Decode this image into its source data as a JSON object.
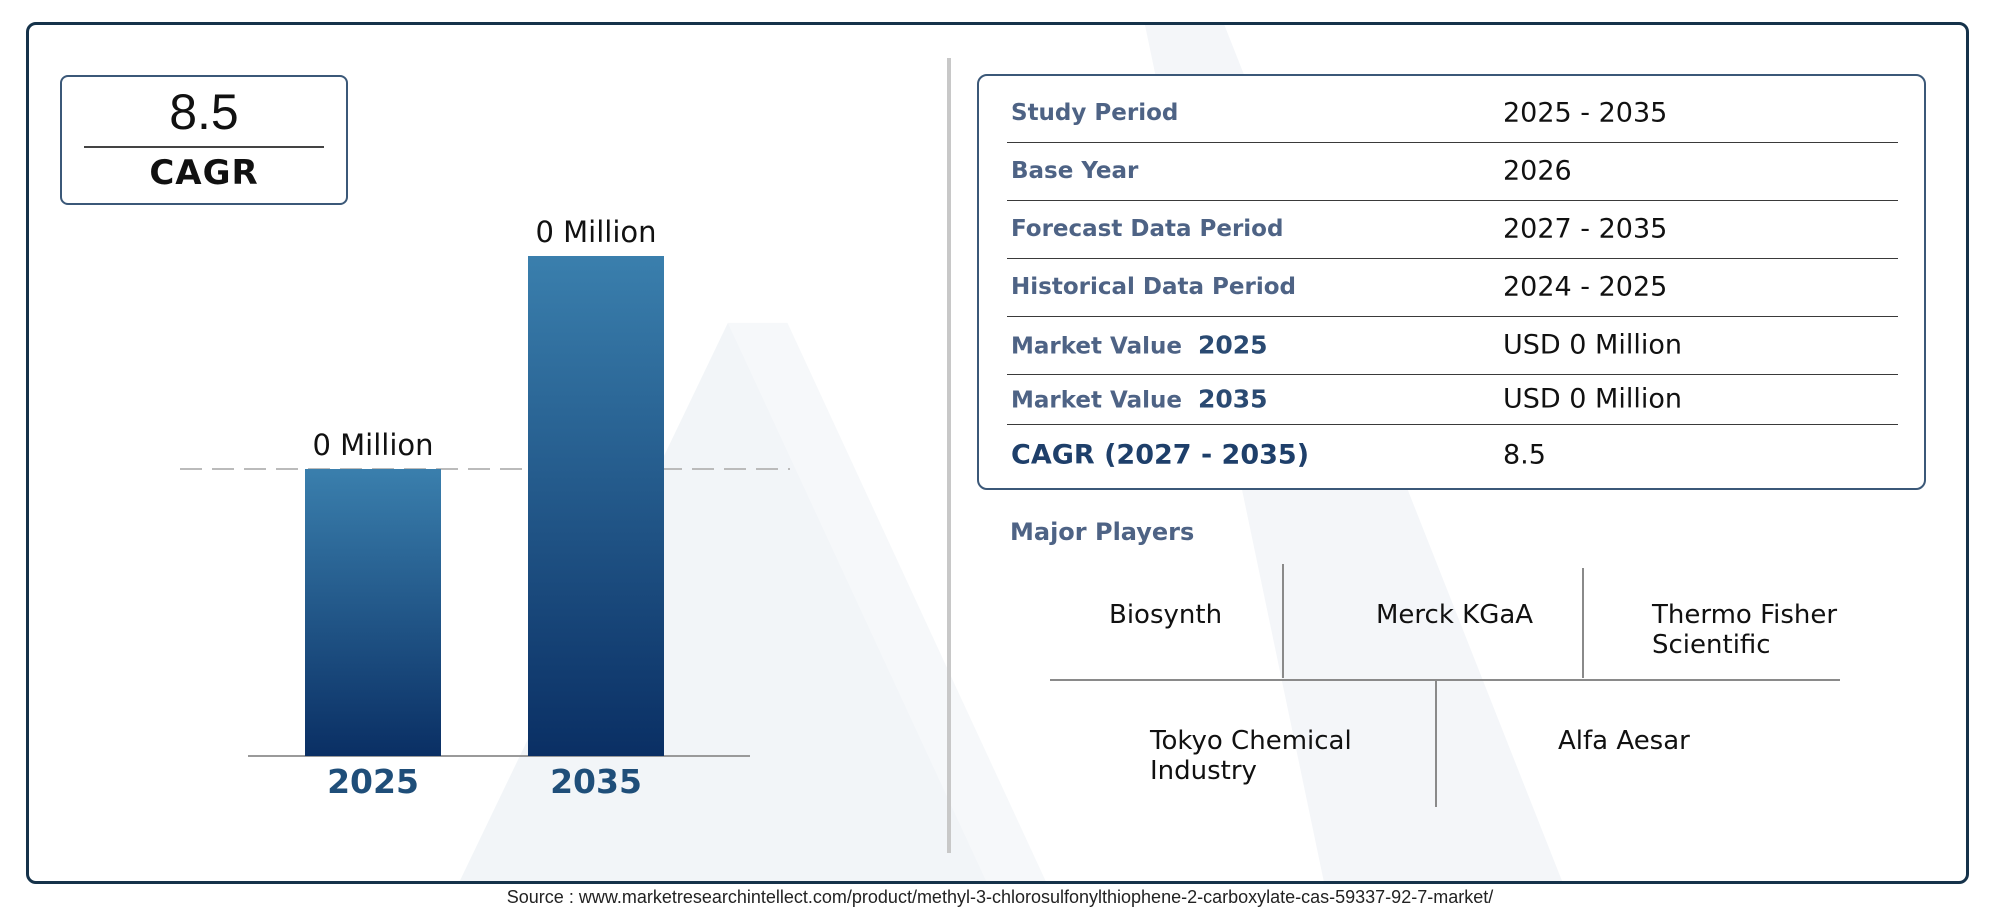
{
  "cagr_box": {
    "value": "8.5",
    "label": "CAGR"
  },
  "chart_data": {
    "type": "bar",
    "categories": [
      "2025",
      "2035"
    ],
    "values": [
      0,
      0
    ],
    "data_labels": [
      "0 Million",
      "0 Million"
    ],
    "title": "",
    "xlabel": "",
    "ylabel": "",
    "grid": false,
    "reference_line": "dashed"
  },
  "info_table": [
    {
      "key": "Study Period",
      "year": "",
      "value": "2025 - 2035"
    },
    {
      "key": "Base Year",
      "year": "",
      "value": "2026"
    },
    {
      "key": "Forecast Data Period",
      "year": "",
      "value": "2027 - 2035"
    },
    {
      "key": "Historical Data Period",
      "year": "",
      "value": "2024 - 2025"
    },
    {
      "key": "Market Value",
      "year": "2025",
      "value": "USD 0 Million"
    },
    {
      "key": "Market Value",
      "year": "2035",
      "value": "USD 0 Million"
    },
    {
      "key": "CAGR (2027 - 2035)",
      "year": "",
      "value": "8.5"
    }
  ],
  "players": {
    "title": "Major Players",
    "names": [
      "Biosynth",
      "Merck KGaA",
      "Thermo Fisher\nScientific",
      "Tokyo Chemical\nIndustry",
      "Alfa Aesar"
    ]
  },
  "colors": {
    "frame": "#15324a",
    "bar_top": "#3a7fad",
    "bar_bottom": "#0a2f64",
    "year_label": "#1f4e79",
    "key_text": "#4e6385"
  },
  "source": "Source : www.marketresearchintellect.com/product/methyl-3-chlorosulfonylthiophene-2-carboxylate-cas-59337-92-7-market/"
}
